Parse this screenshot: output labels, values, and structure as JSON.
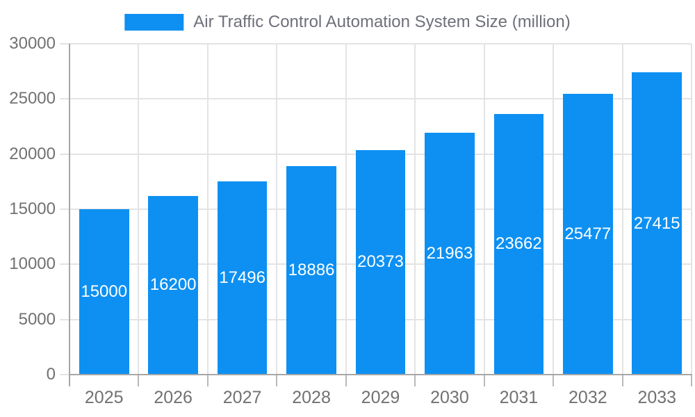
{
  "legend": {
    "label": "Air Traffic Control Automation System Size (million)"
  },
  "colors": {
    "bar": "#0d90f2",
    "axis_line": "#a6a6a6",
    "tick_line": "#b9b9b9",
    "grid_line": "#e3e3e3",
    "axis_text": "#717171",
    "legend_text": "#6e7079",
    "value_text": "#ffffff",
    "background": "#ffffff"
  },
  "chart_data": {
    "type": "bar",
    "title": "Air Traffic Control Automation System Size (million)",
    "categories": [
      "2025",
      "2026",
      "2027",
      "2028",
      "2029",
      "2030",
      "2031",
      "2032",
      "2033"
    ],
    "values": [
      15000,
      16200,
      17496,
      18886,
      20373,
      21963,
      23662,
      25477,
      27415
    ],
    "xlabel": "",
    "ylabel": "",
    "ylim": [
      0,
      30000
    ],
    "yticks": [
      0,
      5000,
      10000,
      15000,
      20000,
      25000,
      30000
    ],
    "grid": true,
    "legend_position": "top",
    "bar_label_position": "inside-center",
    "bar_width_fraction": 0.72
  }
}
